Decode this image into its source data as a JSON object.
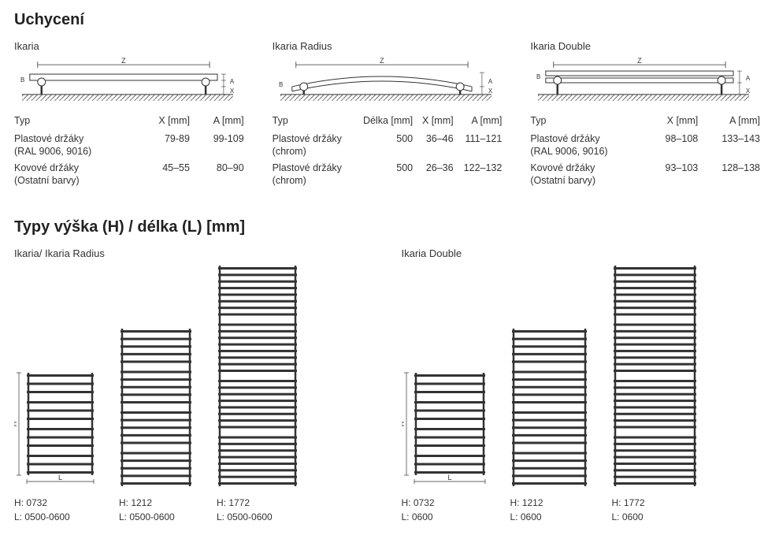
{
  "section1_title": "Uchycení",
  "section2_title": "Typy výška (H) / délka (L) [mm]",
  "colors": {
    "stroke": "#333333",
    "fill": "#ffffff",
    "hatch": "#666666",
    "text": "#333333"
  },
  "mount": {
    "ikaria": {
      "title": "Ikaria",
      "headers": [
        "Typ",
        "X [mm]",
        "A [mm]"
      ],
      "rows": [
        {
          "label": "Plastové držáky\n(RAL 9006, 9016)",
          "x": "79-89",
          "a": "99-109"
        },
        {
          "label": "Kovové držáky\n(Ostatní barvy)",
          "x": "45–55",
          "a": "80–90"
        }
      ]
    },
    "radius": {
      "title": "Ikaria Radius",
      "headers": [
        "Typ",
        "Délka [mm]",
        "X [mm]",
        "A [mm]"
      ],
      "rows": [
        {
          "label": "Plastové držáky\n(chrom)",
          "d": "500",
          "x": "36–46",
          "a": "111–121"
        },
        {
          "label": "Plastové držáky\n(chrom)",
          "d": "500",
          "x": "26–36",
          "a": "122–132"
        }
      ]
    },
    "double": {
      "title": "Ikaria Double",
      "headers": [
        "Typ",
        "X [mm]",
        "A [mm]"
      ],
      "rows": [
        {
          "label": "Plastové držáky\n(RAL 9006, 9016)",
          "x": "98–108",
          "a": "133–143"
        },
        {
          "label": "Kovové držáky\n(Ostatní barvy)",
          "x": "93–103",
          "a": "128–138"
        }
      ]
    }
  },
  "sizes": {
    "left": {
      "title": "Ikaria/ Ikaria Radius",
      "items": [
        {
          "h": "0732",
          "l": "0500-0600",
          "rad_h": 130,
          "rad_w": 85,
          "sections": [
            3,
            3,
            3,
            3
          ]
        },
        {
          "h": "1212",
          "l": "0500-0600",
          "rad_h": 200,
          "rad_w": 90,
          "sections": [
            5,
            5,
            5,
            5
          ]
        },
        {
          "h": "1772",
          "l": "0500-0600",
          "rad_h": 280,
          "rad_w": 100,
          "sections": [
            8,
            8,
            8,
            8
          ]
        }
      ],
      "show_dims": true
    },
    "right": {
      "title": "Ikaria Double",
      "items": [
        {
          "h": "0732",
          "l": "0600",
          "rad_h": 130,
          "rad_w": 90,
          "sections": [
            3,
            3,
            3,
            3
          ]
        },
        {
          "h": "1212",
          "l": "0600",
          "rad_h": 200,
          "rad_w": 95,
          "sections": [
            5,
            5,
            5,
            5
          ]
        },
        {
          "h": "1772",
          "l": "0600",
          "rad_h": 280,
          "rad_w": 105,
          "sections": [
            8,
            8,
            8,
            8
          ]
        }
      ],
      "show_dims": true
    }
  },
  "radiator_style": {
    "bar_thickness": 3,
    "bar_color": "#333333",
    "gap_between_sections": 10,
    "gap_within_section": 2,
    "frame_stroke": "#333333"
  }
}
